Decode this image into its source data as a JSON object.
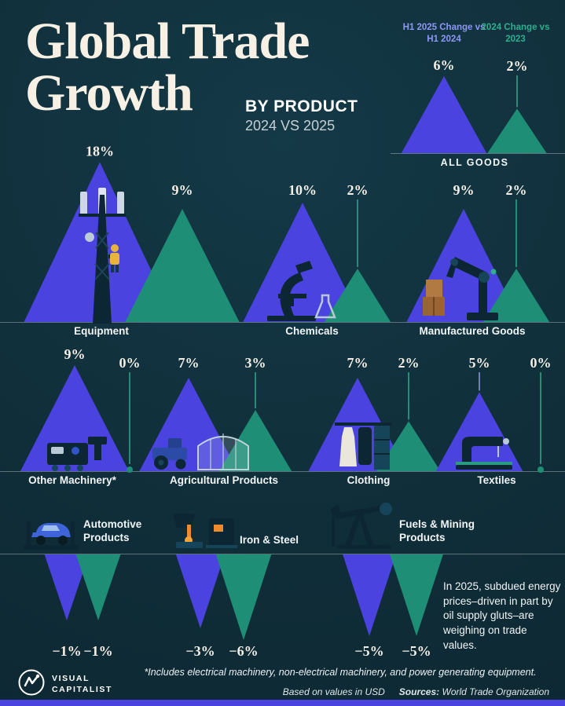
{
  "header": {
    "title_line1": "Global Trade",
    "title_line2": "Growth",
    "subtitle_line1": "BY PRODUCT",
    "subtitle_line2": "2024 VS 2025"
  },
  "legend": {
    "series1_label": "H1 2025 Change vs H1 2024",
    "series2_label": "2024 Change vs 2023"
  },
  "annotation": "In 2025, subdued energy prices–driven in part by oil supply gluts–are weighing on trade values.",
  "footer": {
    "footnote": "*Includes electrical machinery, non-electrical machinery, and power generating equipment.",
    "based_on": "Based on values in USD",
    "sources_label": "Sources:",
    "sources_value": "World Trade Organization",
    "logo_line1": "VISUAL",
    "logo_line2": "CAPITALIST"
  },
  "colors": {
    "background": "#102f3a",
    "series1": "#4a43e0",
    "series2": "#1f8e76",
    "accent_bar": "#4a43e0"
  },
  "chart_data": {
    "type": "bar",
    "variant": "triangle-peak-columns",
    "unit": "%",
    "series": [
      "H1 2025 Change vs H1 2024",
      "2024 Change vs 2023"
    ],
    "series_colors": [
      "#4a43e0",
      "#1f8e76"
    ],
    "groups": [
      {
        "label": "ALL GOODS",
        "values": [
          6,
          2
        ],
        "display": [
          "6%",
          "2%"
        ]
      },
      {
        "label": "Equipment",
        "values": [
          18,
          9
        ],
        "display": [
          "18%",
          "9%"
        ]
      },
      {
        "label": "Chemicals",
        "values": [
          10,
          2
        ],
        "display": [
          "10%",
          "2%"
        ]
      },
      {
        "label": "Manufactured Goods",
        "values": [
          9,
          2
        ],
        "display": [
          "9%",
          "2%"
        ]
      },
      {
        "label": "Other Machinery*",
        "values": [
          9,
          0
        ],
        "display": [
          "9%",
          "0%"
        ]
      },
      {
        "label": "Agricultural Products",
        "values": [
          7,
          3
        ],
        "display": [
          "7%",
          "3%"
        ]
      },
      {
        "label": "Clothing",
        "values": [
          7,
          2
        ],
        "display": [
          "7%",
          "2%"
        ]
      },
      {
        "label": "Textiles",
        "values": [
          5,
          0
        ],
        "display": [
          "5%",
          "0%"
        ]
      },
      {
        "label": "Automotive Products",
        "values": [
          -1,
          -1
        ],
        "display": [
          "−1%",
          "−1%"
        ]
      },
      {
        "label": "Iron & Steel",
        "values": [
          -3,
          -6
        ],
        "display": [
          "−3%",
          "−6%"
        ]
      },
      {
        "label": "Fuels & Mining Products",
        "values": [
          -5,
          -5
        ],
        "display": [
          "−5%",
          "−5%"
        ]
      }
    ]
  }
}
